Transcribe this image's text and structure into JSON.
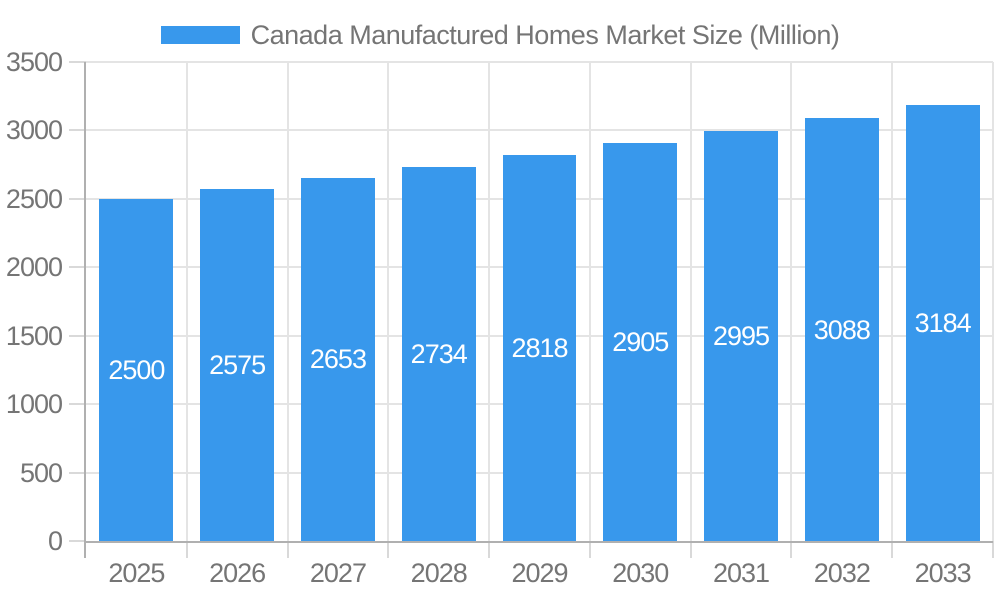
{
  "chart_data": {
    "type": "bar",
    "title": "Canada Manufactured Homes Market Size (Million)",
    "categories": [
      "2025",
      "2026",
      "2027",
      "2028",
      "2029",
      "2030",
      "2031",
      "2032",
      "2033"
    ],
    "values": [
      2500,
      2575,
      2653,
      2734,
      2818,
      2905,
      2995,
      3088,
      3184
    ],
    "xlabel": "",
    "ylabel": "",
    "ylim": [
      0,
      3500
    ],
    "yticks": [
      0,
      500,
      1000,
      1500,
      2000,
      2500,
      3000,
      3500
    ],
    "grid": true,
    "legend_position": "top",
    "bar_labels_visible": true,
    "colors": {
      "bar": "#3898EC",
      "grid": "#E4E4E4",
      "axis": "#B0B0B0",
      "tick": "#D9D9D9",
      "tick_label": "#757575",
      "bar_label": "#FFFFFF",
      "legend_text": "#757575",
      "background": "#FFFFFF"
    }
  }
}
